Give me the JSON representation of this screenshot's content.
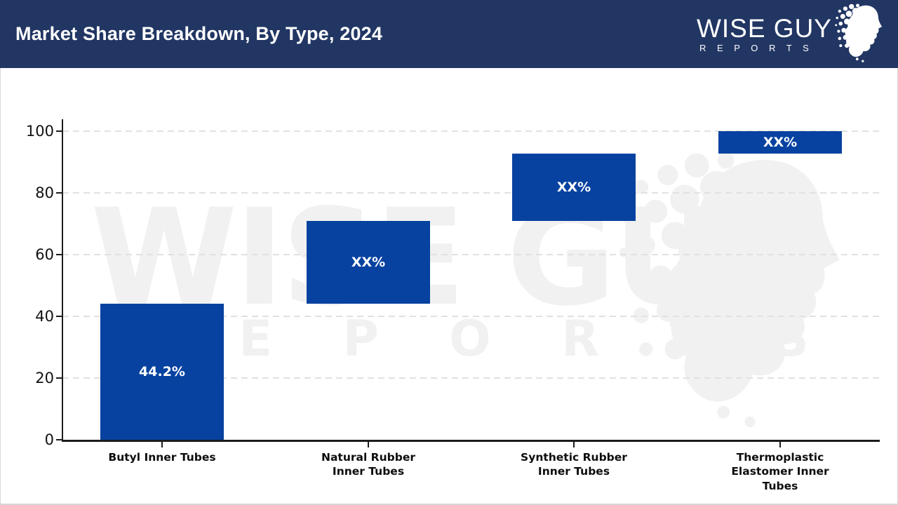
{
  "header": {
    "title": "Market Share Breakdown, By Type, 2024",
    "logo": {
      "wordmark": "WISE GUY",
      "subtext": "R E P O R T S",
      "face_icon": "face-dots-icon"
    }
  },
  "watermark": {
    "line1": "WISE GUY",
    "line2": "R E P O R T S",
    "face_icon": "face-dots-icon"
  },
  "colors": {
    "header_bg": "#213663",
    "bar": "#0742a0",
    "grid": "#e1e1e1",
    "watermark": "#f1f1f1",
    "axis": "#1c1c1c"
  },
  "chart_data": {
    "type": "bar",
    "subtype": "waterfall",
    "title": "Market Share Breakdown, By Type, 2024",
    "unit": "%",
    "categories": [
      "Butyl Inner Tubes",
      "Natural Rubber\nInner Tubes",
      "Synthetic Rubber\nInner Tubes",
      "Thermoplastic\nElastomer Inner\nTubes"
    ],
    "segments": [
      {
        "category": "Butyl Inner Tubes",
        "start": 0,
        "end": 44.2,
        "label": "44.2%"
      },
      {
        "category": "Natural Rubber Inner Tubes",
        "start": 44.2,
        "end": 71.0,
        "label": "XX%"
      },
      {
        "category": "Synthetic Rubber Inner Tubes",
        "start": 71.0,
        "end": 92.8,
        "label": "XX%"
      },
      {
        "category": "Thermoplastic Elastomer Inner Tubes",
        "start": 92.8,
        "end": 100.0,
        "label": "XX%"
      }
    ],
    "yticks": [
      0,
      20,
      40,
      60,
      80,
      100
    ],
    "ylim": [
      0,
      104
    ],
    "grid": "horizontal-dashed",
    "legend": "none",
    "bar_color": "#0742a0"
  }
}
